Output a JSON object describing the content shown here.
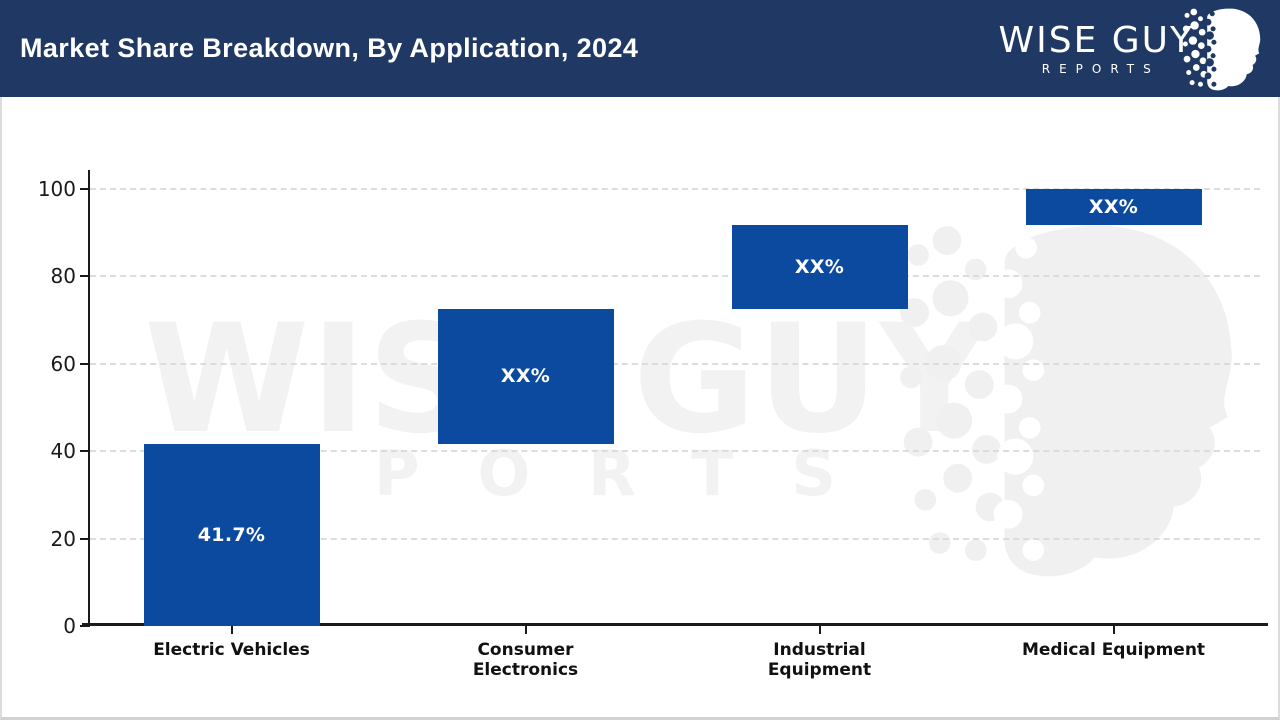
{
  "header": {
    "title": "Market Share Breakdown, By Application, 2024",
    "logo": {
      "wordmark": "WISE GUY",
      "subtitle": "REPORTS",
      "head_icon": "dotted-head-profile"
    }
  },
  "watermark": {
    "line1": "WISE GUY",
    "line2": "PORTS",
    "head_icon": "dotted-head-profile"
  },
  "colors": {
    "header_bg": "#1f3864",
    "bar_blue": "#0b4a9e",
    "grid": "#dcdcdc",
    "axis": "#1a1a1a",
    "watermark": "#f2f2f2",
    "page_border": "#dcdcdc"
  },
  "chart_data": {
    "type": "bar",
    "subtype": "waterfall",
    "title": "Market Share Breakdown, By Application, 2024",
    "x_categories": [
      "Electric Vehicles",
      "Consumer\nElectronics",
      "Industrial\nEquipment",
      "Medical Equipment"
    ],
    "segments": [
      {
        "category": "Electric Vehicles",
        "start": 0,
        "end": 41.7,
        "label": "41.7%"
      },
      {
        "category": "Consumer Electronics",
        "start": 41.7,
        "end": 72.5,
        "label": "XX%"
      },
      {
        "category": "Industrial Equipment",
        "start": 72.5,
        "end": 91.7,
        "label": "XX%"
      },
      {
        "category": "Medical Equipment",
        "start": 91.7,
        "end": 100.0,
        "label": "XX%"
      }
    ],
    "ylim": [
      0,
      100
    ],
    "yticks": [
      0,
      20,
      40,
      60,
      80,
      100
    ],
    "grid": {
      "horizontal": true,
      "style": "dashed"
    },
    "legend": null,
    "bar_color": "#0b4a9e",
    "bar_label_color": "#ffffff"
  }
}
